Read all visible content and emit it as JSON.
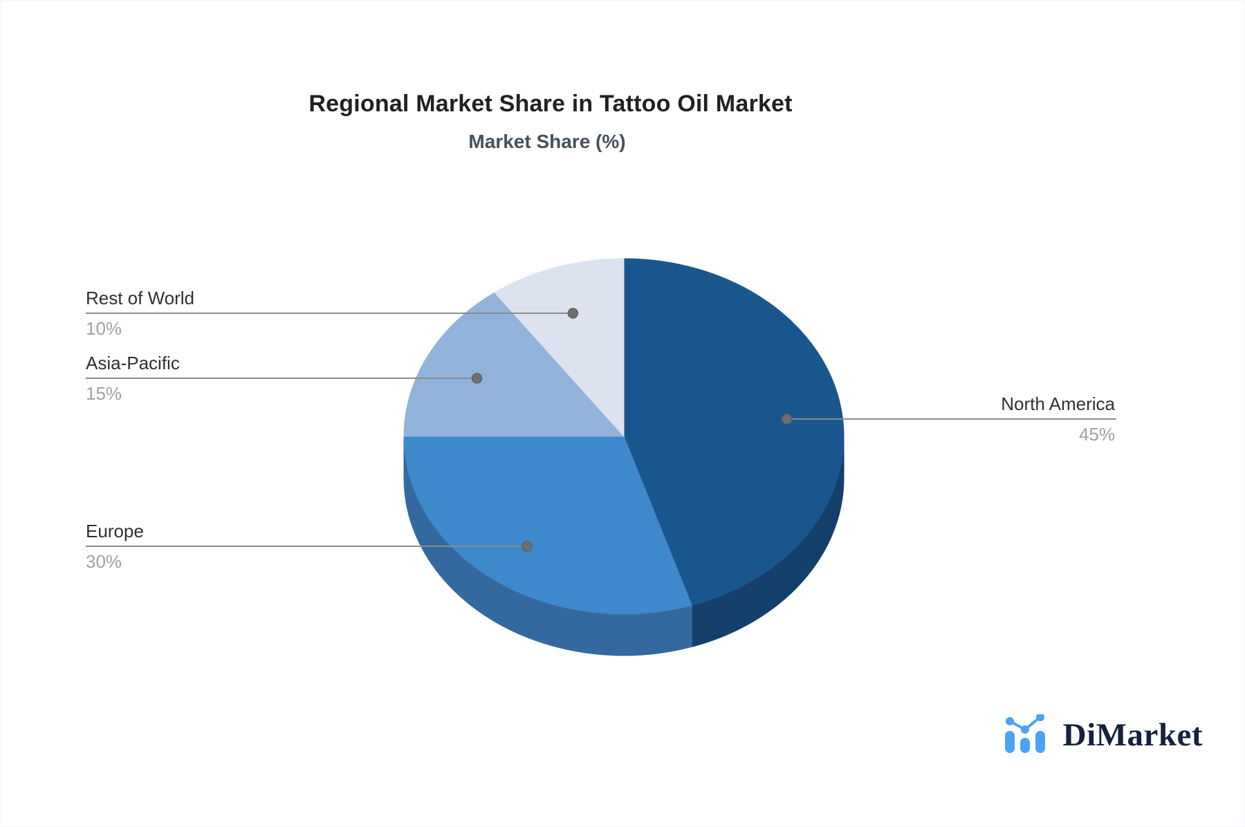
{
  "header": {
    "title": "Regional Market Share in Tattoo Oil Market",
    "subtitle": "Market Share (%)"
  },
  "chart_data": {
    "type": "pie",
    "style": "3d",
    "title": "Regional Market Share in Tattoo Oil Market",
    "subtitle": "Market Share (%)",
    "unit": "%",
    "start_angle_deg": 0,
    "direction": "clockwise",
    "categories": [
      "North America",
      "Europe",
      "Asia-Pacific",
      "Rest of World"
    ],
    "values": [
      45,
      30,
      15,
      10
    ],
    "slices": [
      {
        "label": "North America",
        "value": 45,
        "pct_label": "45%",
        "color": "#1A568E",
        "side_color": "#153F6B"
      },
      {
        "label": "Europe",
        "value": 30,
        "pct_label": "30%",
        "color": "#3E88CC",
        "side_color": "#33699F"
      },
      {
        "label": "Asia-Pacific",
        "value": 15,
        "pct_label": "15%",
        "color": "#91B3D9",
        "side_color": "#7A9CC4"
      },
      {
        "label": "Rest of World",
        "value": 10,
        "pct_label": "10%",
        "color": "#DCE3EF",
        "side_color": "#C2CBD9"
      }
    ],
    "leader_line_color": "#8A8A8A",
    "leader_dot_color": "#6F6F6F",
    "label_color": "#303030",
    "pct_color": "#9EA1A6",
    "legend": "none"
  },
  "footer": {
    "brand": "DiMarket",
    "brand_color": "#16213E",
    "icon_color": "#4BA3F2"
  }
}
